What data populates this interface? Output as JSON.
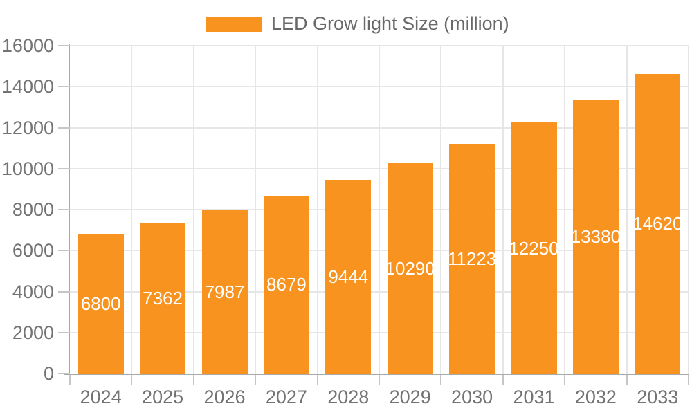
{
  "chart_data": {
    "type": "bar",
    "title": "",
    "legend_label": "LED Grow light Size (million)",
    "legend_position": "top-center",
    "categories": [
      "2024",
      "2025",
      "2026",
      "2027",
      "2028",
      "2029",
      "2030",
      "2031",
      "2032",
      "2033"
    ],
    "values": [
      6800,
      7362,
      7987,
      8679,
      9444,
      10290,
      11223,
      12250,
      13380,
      14620
    ],
    "xlabel": "",
    "ylabel": "",
    "ylim": [
      0,
      16000
    ],
    "ytick_step": 2000,
    "grid": {
      "horizontal": true,
      "vertical": true
    },
    "value_labels": "inside-middle",
    "colors": {
      "bar": "#F7931E",
      "value_label": "#FFFFFF",
      "axis_text": "#737373",
      "legend_text": "#696969",
      "grid_line": "#E6E6E6",
      "axis_line": "#A9A9A9",
      "tick_line": "#C6C6C6",
      "background": "#FFFFFF"
    }
  }
}
